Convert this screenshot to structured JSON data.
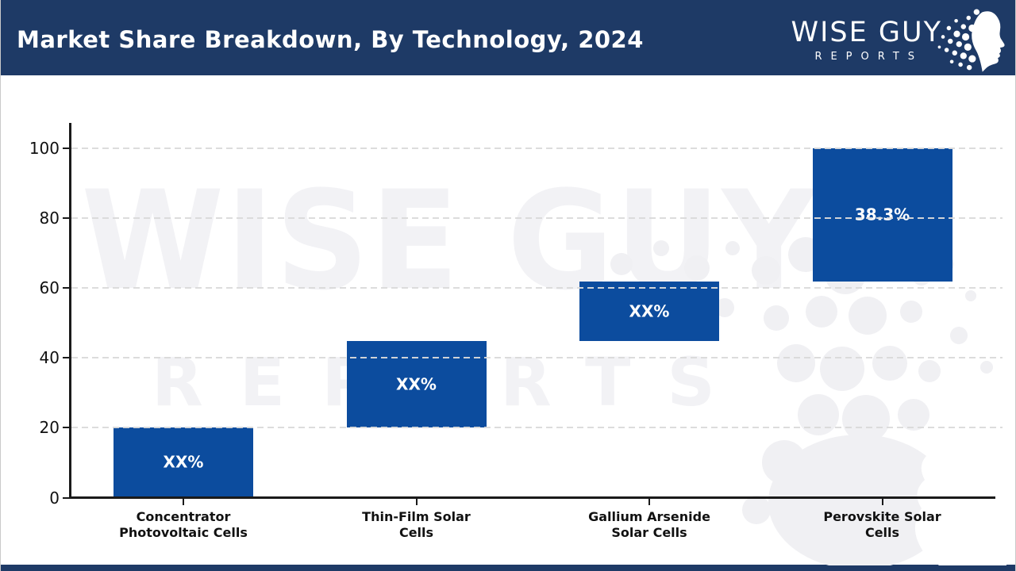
{
  "header": {
    "title": "Market Share Breakdown, By Technology, 2024",
    "logo": {
      "name": "WISE GUY",
      "tagline": "REPORTS"
    }
  },
  "watermark": {
    "line1": "WISE GUY",
    "line2": "REPORTS"
  },
  "colors": {
    "header_bg": "#1e3a66",
    "bar": "#0c4c9e",
    "grid": "#dadada",
    "axis": "#1a1a1a",
    "bar_label": "#ffffff",
    "watermark": "#f2f2f5"
  },
  "chart_data": {
    "type": "bar",
    "subtype": "floating-waterfall",
    "title": "Market Share Breakdown, By Technology, 2024",
    "categories": [
      "Concentrator Photovoltaic Cells",
      "Thin-Film Solar Cells",
      "Gallium Arsenide Solar Cells",
      "Perovskite Solar Cells"
    ],
    "category_lines": [
      [
        "Concentrator",
        "Photovoltaic Cells"
      ],
      [
        "Thin-Film Solar",
        "Cells"
      ],
      [
        "Gallium Arsenide",
        "Solar Cells"
      ],
      [
        "Perovskite Solar",
        "Cells"
      ]
    ],
    "series": [
      {
        "name": "Market Share",
        "segments": [
          [
            0,
            20
          ],
          [
            20,
            44.7
          ],
          [
            44.7,
            61.7
          ],
          [
            61.7,
            100
          ]
        ],
        "labels": [
          "XX%",
          "XX%",
          "XX%",
          "38.3%"
        ]
      }
    ],
    "ylim": [
      0,
      100
    ],
    "yticks": [
      0,
      20,
      40,
      60,
      80,
      100
    ],
    "grid": true,
    "grid_style": "dashed",
    "legend": null,
    "bar_color": "#0c4c9e"
  }
}
